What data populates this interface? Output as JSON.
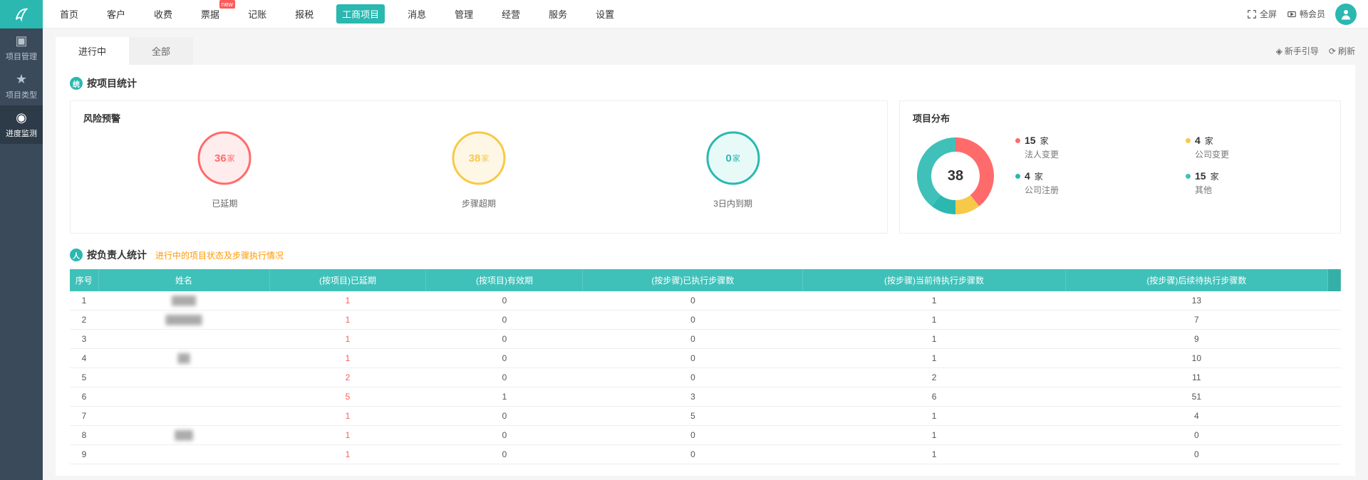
{
  "sidebar": {
    "items": [
      {
        "label": "项目管理",
        "icon": "folder"
      },
      {
        "label": "项目类型",
        "icon": "star"
      },
      {
        "label": "进度监测",
        "icon": "monitor"
      }
    ],
    "active_index": 2
  },
  "topnav": {
    "items": [
      "首页",
      "客户",
      "收费",
      "票据",
      "记账",
      "报税",
      "工商项目",
      "消息",
      "管理",
      "经营",
      "服务",
      "设置"
    ],
    "badge_index": 3,
    "badge_text": "new",
    "highlight_index": 6
  },
  "top_right": {
    "fullscreen": "全屏",
    "member": "畅会员"
  },
  "tabs": {
    "items": [
      "进行中",
      "全部"
    ],
    "active_index": 0,
    "actions": {
      "guide": "新手引导",
      "refresh": "刷新"
    }
  },
  "stats_section": {
    "title": "按项目统计",
    "risk": {
      "title": "风险预警",
      "circles": [
        {
          "value": 36,
          "unit": "家",
          "label": "已延期",
          "color": "#ff6b6b",
          "bg": "#ffecec"
        },
        {
          "value": 38,
          "unit": "家",
          "label": "步骤超期",
          "color": "#f7c948",
          "bg": "#fff7e6"
        },
        {
          "value": 0,
          "unit": "家",
          "label": "3日内到期",
          "color": "#2ab8b0",
          "bg": "#e8faf8"
        }
      ]
    },
    "distribution": {
      "title": "项目分布",
      "total": 38,
      "slices": [
        {
          "value": 15,
          "label": "法人变更",
          "color": "#ff6b6b"
        },
        {
          "value": 4,
          "label": "公司变更",
          "color": "#f7c948"
        },
        {
          "value": 4,
          "label": "公司注册",
          "color": "#2ab8b0"
        },
        {
          "value": 15,
          "label": "其他",
          "color": "#3fc1b9"
        }
      ],
      "legend_unit": "家"
    }
  },
  "person_section": {
    "title": "按负责人统计",
    "subtitle": "进行中的项目状态及步骤执行情况"
  },
  "table": {
    "columns": [
      "序号",
      "姓名",
      "(按项目)已延期",
      "(按项目)有效期",
      "(按步骤)已执行步骤数",
      "(按步骤)当前待执行步骤数",
      "(按步骤)后续待执行步骤数"
    ],
    "rows": [
      {
        "idx": 1,
        "name": "████",
        "delayed": 1,
        "valid": 0,
        "done": 0,
        "current": 1,
        "future": 13
      },
      {
        "idx": 2,
        "name": "██████",
        "delayed": 1,
        "valid": 0,
        "done": 0,
        "current": 1,
        "future": 7
      },
      {
        "idx": 3,
        "name": "",
        "delayed": 1,
        "valid": 0,
        "done": 0,
        "current": 1,
        "future": 9
      },
      {
        "idx": 4,
        "name": "██",
        "delayed": 1,
        "valid": 0,
        "done": 0,
        "current": 1,
        "future": 10
      },
      {
        "idx": 5,
        "name": "",
        "delayed": 2,
        "valid": 0,
        "done": 0,
        "current": 2,
        "future": 11
      },
      {
        "idx": 6,
        "name": "",
        "delayed": 5,
        "valid": 1,
        "done": 3,
        "current": 6,
        "future": 51
      },
      {
        "idx": 7,
        "name": "",
        "delayed": 1,
        "valid": 0,
        "done": 5,
        "current": 1,
        "future": 4
      },
      {
        "idx": 8,
        "name": "███",
        "delayed": 1,
        "valid": 0,
        "done": 0,
        "current": 1,
        "future": 0
      },
      {
        "idx": 9,
        "name": "",
        "delayed": 1,
        "valid": 0,
        "done": 0,
        "current": 1,
        "future": 0
      }
    ]
  }
}
